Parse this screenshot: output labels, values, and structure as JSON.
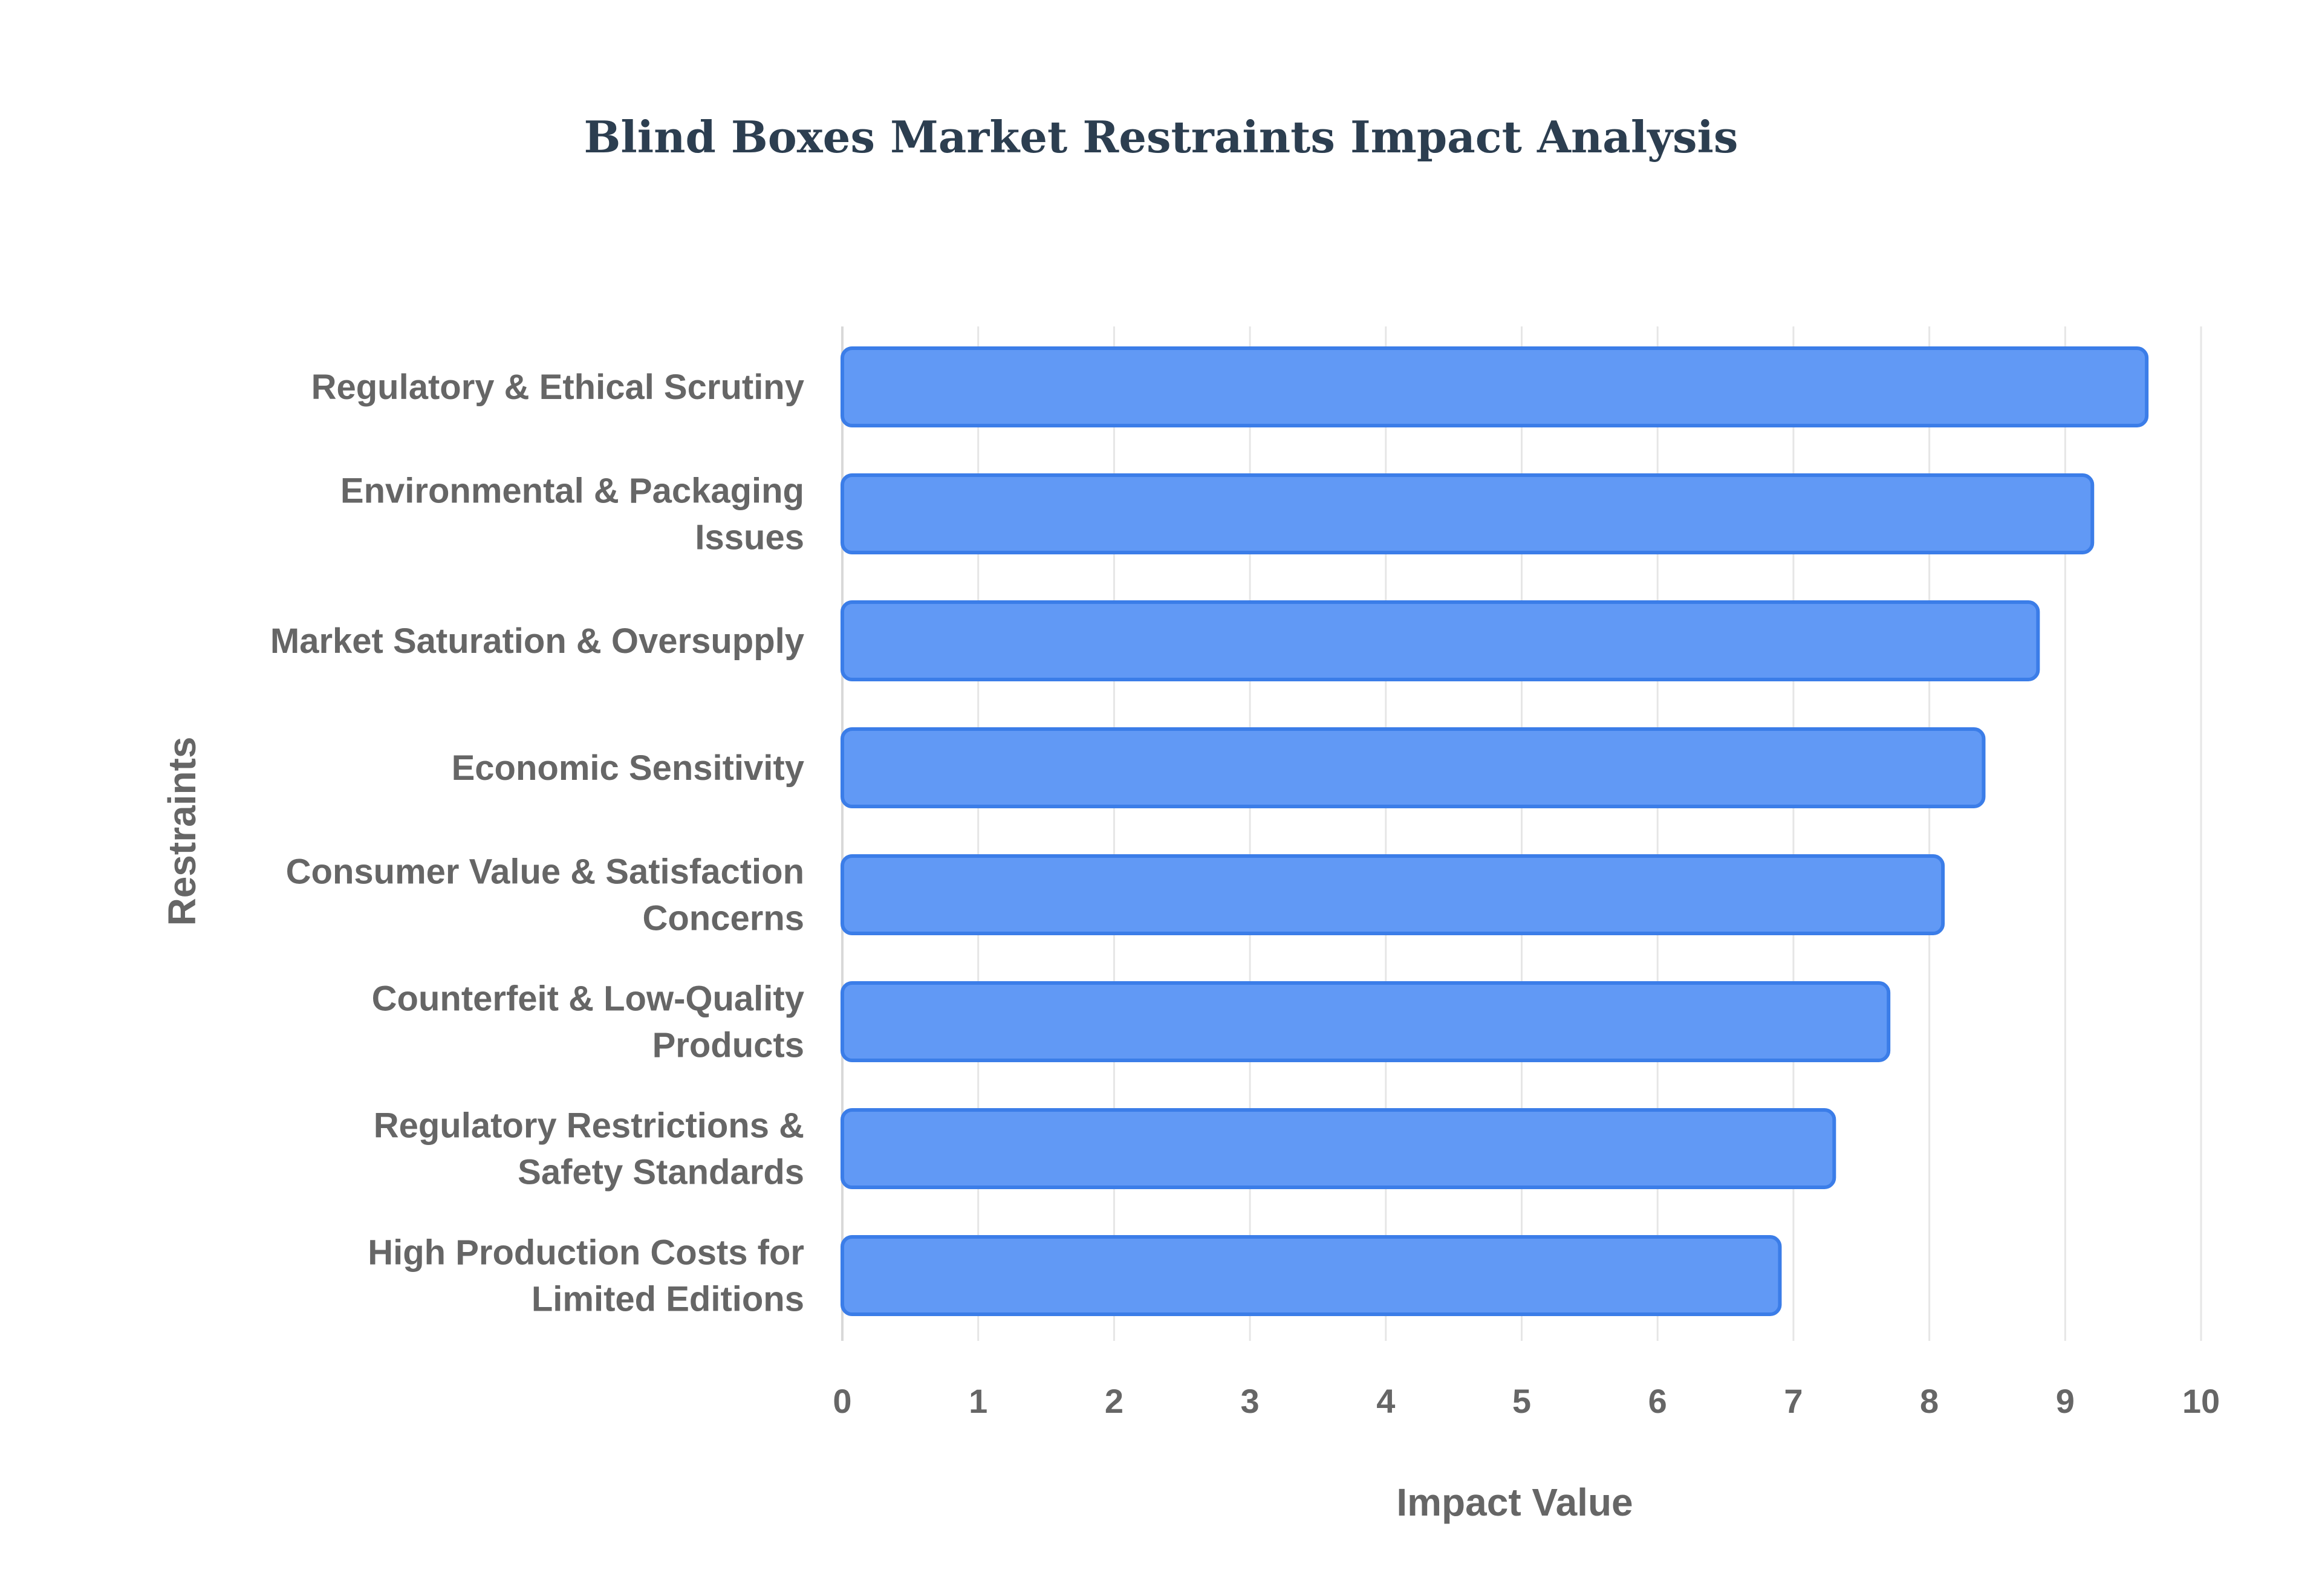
{
  "chart_data": {
    "type": "bar",
    "orientation": "horizontal",
    "title": "Blind Boxes Market Restraints Impact Analysis",
    "xlabel": "Impact Value",
    "ylabel": "Restraints",
    "xlim": [
      0,
      10
    ],
    "x_ticks": [
      "0",
      "1",
      "2",
      "3",
      "4",
      "5",
      "6",
      "7",
      "8",
      "9",
      "10"
    ],
    "grid": "vertical",
    "categories": [
      "Regulatory & Ethical Scrutiny",
      "Environmental & Packaging Issues",
      "Market Saturation & Oversupply",
      "Economic Sensitivity",
      "Consumer Value & Satisfaction Concerns",
      "Counterfeit & Low-Quality Products",
      "Regulatory Restrictions & Safety Standards",
      "High Production Costs for Limited Editions"
    ],
    "category_label_lines": [
      [
        "Regulatory & Ethical Scrutiny"
      ],
      [
        "Environmental & Packaging",
        "Issues"
      ],
      [
        "Market Saturation & Oversupply"
      ],
      [
        "Economic Sensitivity"
      ],
      [
        "Consumer Value & Satisfaction",
        "Concerns"
      ],
      [
        "Counterfeit & Low-Quality",
        "Products"
      ],
      [
        "Regulatory Restrictions &",
        "Safety Standards"
      ],
      [
        "High Production Costs for",
        "Limited Editions"
      ]
    ],
    "values": [
      9.6,
      9.2,
      8.8,
      8.4,
      8.1,
      7.7,
      7.3,
      6.9
    ],
    "colors": {
      "bar_fill": "#6199f5",
      "bar_stroke": "#3b7de8",
      "title": "#2c3e50",
      "text": "#666666",
      "grid": "#e6e6e6"
    }
  }
}
